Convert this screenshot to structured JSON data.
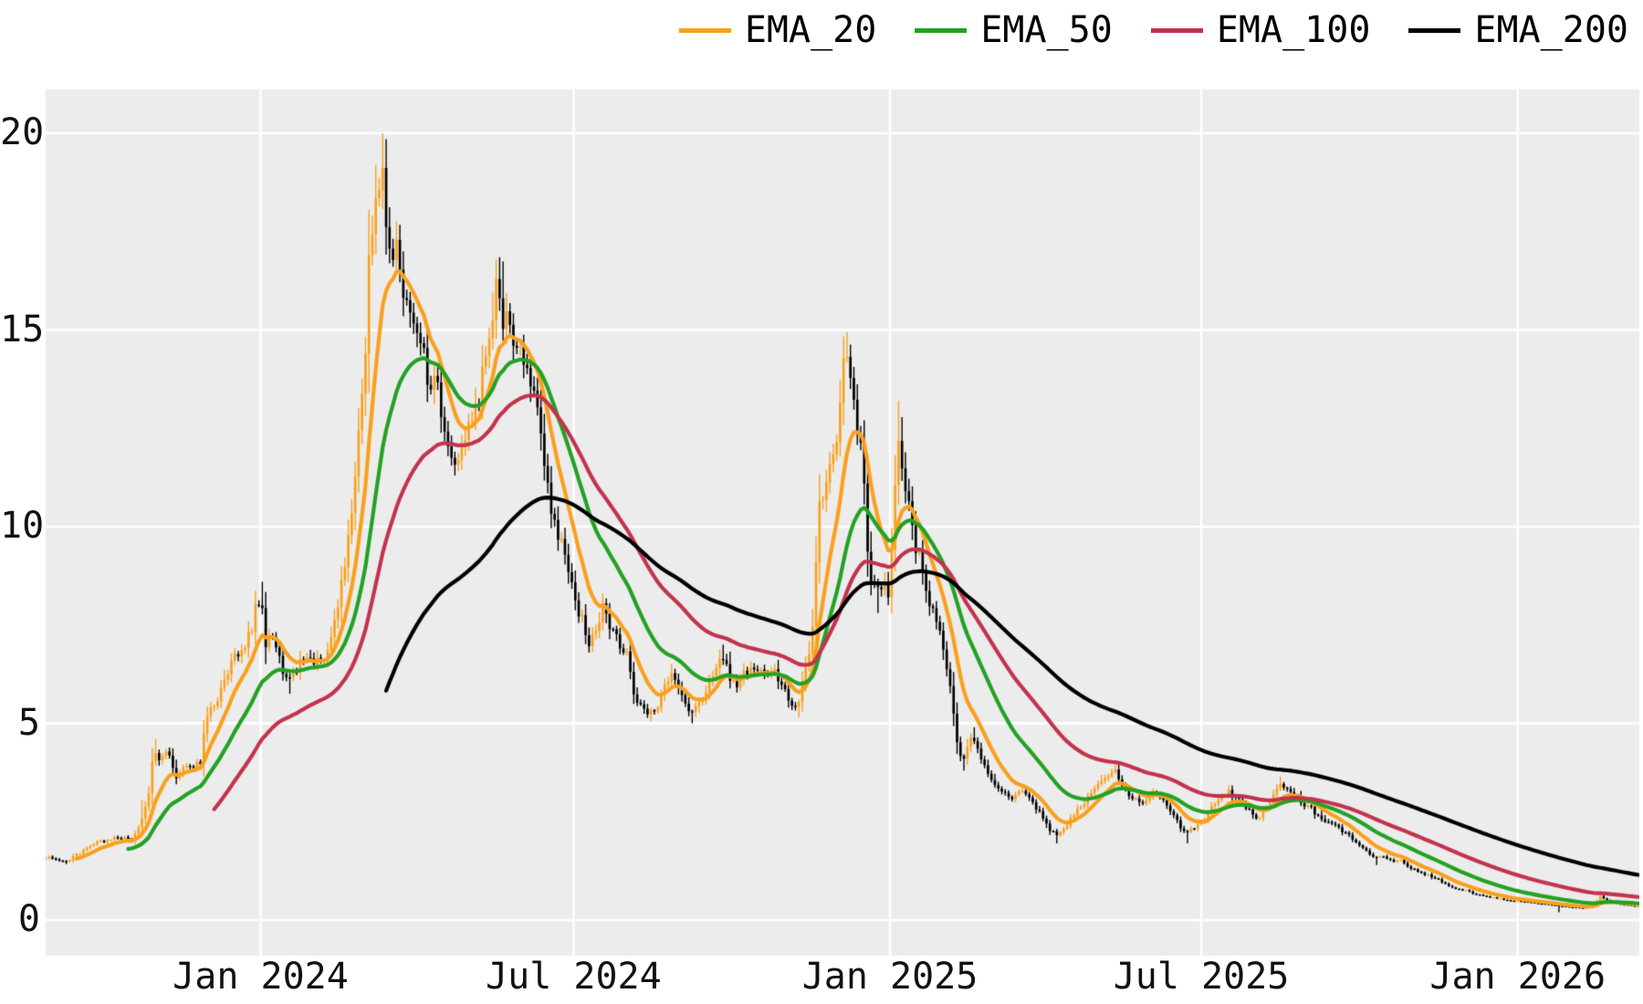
{
  "legend": {
    "items": [
      {
        "label": "EMA_20",
        "color": "#f9a01d"
      },
      {
        "label": "EMA_50",
        "color": "#23a123"
      },
      {
        "label": "EMA_100",
        "color": "#c2334d"
      },
      {
        "label": "EMA_200",
        "color": "#000000"
      }
    ]
  },
  "chart_data": {
    "type": "candlestick",
    "title": "",
    "legend_position": "top-right",
    "grid": true,
    "colors": {
      "candle_up": "#f9a01d",
      "candle_down": "#000000",
      "ema20": "#f9a01d",
      "ema50": "#23a123",
      "ema100": "#c2334d",
      "ema200": "#000000",
      "plot_bg": "#ececec",
      "grid": "#ffffff",
      "text": "#111111",
      "figure_bg": "#ffffff"
    },
    "overlays": [
      {
        "name": "EMA_20",
        "span_days": 20,
        "color": "#f9a01d"
      },
      {
        "name": "EMA_50",
        "span_days": 50,
        "color": "#23a123"
      },
      {
        "name": "EMA_100",
        "span_days": 100,
        "color": "#c2334d"
      },
      {
        "name": "EMA_200",
        "span_days": 200,
        "color": "#000000"
      }
    ],
    "x_axis": {
      "start": "2023-08-29",
      "end": "2026-03-12",
      "ticks": [
        {
          "date": "2024-01-01",
          "label": "Jan 2024"
        },
        {
          "date": "2024-07-01",
          "label": "Jul 2024"
        },
        {
          "date": "2025-01-01",
          "label": "Jan 2025"
        },
        {
          "date": "2025-07-01",
          "label": "Jul 2025"
        },
        {
          "date": "2026-01-01",
          "label": "Jan 2026"
        }
      ]
    },
    "y_axis": {
      "ticks": [
        0,
        5,
        10,
        15,
        20
      ],
      "tick_labels": [
        "0",
        "5",
        "10",
        "15",
        "20"
      ],
      "min": -0.9,
      "max": 21.1
    },
    "candle_step_days": 2,
    "close_anchors": [
      [
        "2023-08-29",
        1.6
      ],
      [
        "2023-09-04",
        1.55
      ],
      [
        "2023-09-09",
        1.45
      ],
      [
        "2023-09-19",
        1.75
      ],
      [
        "2023-09-30",
        2.0
      ],
      [
        "2023-10-11",
        2.1
      ],
      [
        "2023-10-19",
        2.05
      ],
      [
        "2023-10-24",
        2.6
      ],
      [
        "2023-10-28",
        3.3
      ],
      [
        "2023-10-31",
        4.35
      ],
      [
        "2023-11-03",
        4.1
      ],
      [
        "2023-11-08",
        4.45
      ],
      [
        "2023-11-12",
        3.55
      ],
      [
        "2023-11-17",
        3.9
      ],
      [
        "2023-11-22",
        3.85
      ],
      [
        "2023-11-27",
        4.0
      ],
      [
        "2023-12-01",
        5.3
      ],
      [
        "2023-12-07",
        5.65
      ],
      [
        "2023-12-13",
        6.3
      ],
      [
        "2023-12-20",
        6.9
      ],
      [
        "2023-12-25",
        7.2
      ],
      [
        "2024-01-01",
        8.3
      ],
      [
        "2024-01-04",
        7.0
      ],
      [
        "2024-01-08",
        7.3
      ],
      [
        "2024-01-12",
        6.6
      ],
      [
        "2024-01-17",
        6.05
      ],
      [
        "2024-01-23",
        6.5
      ],
      [
        "2024-01-30",
        6.65
      ],
      [
        "2024-02-05",
        6.55
      ],
      [
        "2024-02-10",
        7.0
      ],
      [
        "2024-02-14",
        7.7
      ],
      [
        "2024-02-18",
        8.8
      ],
      [
        "2024-02-21",
        9.7
      ],
      [
        "2024-02-25",
        11.2
      ],
      [
        "2024-03-01",
        13.8
      ],
      [
        "2024-03-04",
        16.5
      ],
      [
        "2024-03-07",
        18.4
      ],
      [
        "2024-03-09",
        17.6
      ],
      [
        "2024-03-11",
        19.3
      ],
      [
        "2024-03-14",
        18.0
      ],
      [
        "2024-03-17",
        16.9
      ],
      [
        "2024-03-20",
        17.3
      ],
      [
        "2024-03-25",
        15.9
      ],
      [
        "2024-03-28",
        15.7
      ],
      [
        "2024-04-01",
        15.3
      ],
      [
        "2024-04-05",
        14.4
      ],
      [
        "2024-04-08",
        13.7
      ],
      [
        "2024-04-12",
        13.9
      ],
      [
        "2024-04-15",
        12.6
      ],
      [
        "2024-04-19",
        11.9
      ],
      [
        "2024-04-22",
        11.6
      ],
      [
        "2024-04-27",
        12.1
      ],
      [
        "2024-05-02",
        12.6
      ],
      [
        "2024-05-07",
        13.4
      ],
      [
        "2024-05-12",
        14.8
      ],
      [
        "2024-05-18",
        16.3
      ],
      [
        "2024-05-21",
        15.4
      ],
      [
        "2024-05-26",
        15.0
      ],
      [
        "2024-05-31",
        14.3
      ],
      [
        "2024-06-05",
        13.8
      ],
      [
        "2024-06-11",
        12.7
      ],
      [
        "2024-06-15",
        11.5
      ],
      [
        "2024-06-19",
        10.2
      ],
      [
        "2024-06-23",
        9.6
      ],
      [
        "2024-06-28",
        8.9
      ],
      [
        "2024-07-02",
        8.2
      ],
      [
        "2024-07-06",
        7.6
      ],
      [
        "2024-07-10",
        7.1
      ],
      [
        "2024-07-14",
        7.5
      ],
      [
        "2024-07-18",
        8.0
      ],
      [
        "2024-07-22",
        7.5
      ],
      [
        "2024-07-27",
        7.0
      ],
      [
        "2024-08-02",
        6.6
      ],
      [
        "2024-08-05",
        5.8
      ],
      [
        "2024-08-10",
        5.4
      ],
      [
        "2024-08-14",
        5.3
      ],
      [
        "2024-08-20",
        5.5
      ],
      [
        "2024-08-24",
        6.1
      ],
      [
        "2024-08-27",
        6.3
      ],
      [
        "2024-08-30",
        5.9
      ],
      [
        "2024-09-04",
        5.6
      ],
      [
        "2024-09-07",
        5.25
      ],
      [
        "2024-09-12",
        5.45
      ],
      [
        "2024-09-17",
        5.9
      ],
      [
        "2024-09-21",
        6.3
      ],
      [
        "2024-09-25",
        6.85
      ],
      [
        "2024-09-29",
        6.3
      ],
      [
        "2024-10-03",
        6.0
      ],
      [
        "2024-10-08",
        6.2
      ],
      [
        "2024-10-13",
        6.35
      ],
      [
        "2024-10-19",
        6.2
      ],
      [
        "2024-10-24",
        6.35
      ],
      [
        "2024-10-28",
        6.1
      ],
      [
        "2024-11-01",
        5.8
      ],
      [
        "2024-11-05",
        5.5
      ],
      [
        "2024-11-08",
        5.35
      ],
      [
        "2024-11-11",
        6.0
      ],
      [
        "2024-11-16",
        6.9
      ],
      [
        "2024-11-21",
        10.6
      ],
      [
        "2024-11-25",
        10.9
      ],
      [
        "2024-11-28",
        11.7
      ],
      [
        "2024-12-02",
        12.6
      ],
      [
        "2024-12-06",
        14.4
      ],
      [
        "2024-12-09",
        13.6
      ],
      [
        "2024-12-12",
        12.8
      ],
      [
        "2024-12-16",
        12.0
      ],
      [
        "2024-12-18",
        10.3
      ],
      [
        "2024-12-20",
        8.8
      ],
      [
        "2024-12-24",
        8.2
      ],
      [
        "2024-12-28",
        8.6
      ],
      [
        "2025-01-01",
        8.3
      ],
      [
        "2025-01-05",
        12.3
      ],
      [
        "2025-01-08",
        11.4
      ],
      [
        "2025-01-12",
        10.6
      ],
      [
        "2025-01-15",
        9.7
      ],
      [
        "2025-01-20",
        9.0
      ],
      [
        "2025-01-23",
        8.3
      ],
      [
        "2025-01-28",
        7.6
      ],
      [
        "2025-01-31",
        7.0
      ],
      [
        "2025-02-04",
        6.3
      ],
      [
        "2025-02-07",
        5.3
      ],
      [
        "2025-02-10",
        4.2
      ],
      [
        "2025-02-12",
        4.0
      ],
      [
        "2025-02-15",
        4.4
      ],
      [
        "2025-02-18",
        4.7
      ],
      [
        "2025-02-21",
        4.3
      ],
      [
        "2025-02-26",
        3.8
      ],
      [
        "2025-03-03",
        3.5
      ],
      [
        "2025-03-08",
        3.2
      ],
      [
        "2025-03-14",
        3.1
      ],
      [
        "2025-03-19",
        3.25
      ],
      [
        "2025-03-24",
        3.05
      ],
      [
        "2025-03-30",
        2.7
      ],
      [
        "2025-04-04",
        2.3
      ],
      [
        "2025-04-08",
        2.15
      ],
      [
        "2025-04-12",
        2.35
      ],
      [
        "2025-04-17",
        2.6
      ],
      [
        "2025-04-22",
        2.9
      ],
      [
        "2025-04-28",
        3.2
      ],
      [
        "2025-05-03",
        3.5
      ],
      [
        "2025-05-08",
        3.7
      ],
      [
        "2025-05-12",
        3.8
      ],
      [
        "2025-05-16",
        3.4
      ],
      [
        "2025-05-22",
        3.1
      ],
      [
        "2025-05-27",
        2.95
      ],
      [
        "2025-06-02",
        3.25
      ],
      [
        "2025-06-08",
        3.1
      ],
      [
        "2025-06-13",
        2.8
      ],
      [
        "2025-06-18",
        2.4
      ],
      [
        "2025-06-22",
        2.15
      ],
      [
        "2025-06-28",
        2.4
      ],
      [
        "2025-07-03",
        2.6
      ],
      [
        "2025-07-08",
        2.9
      ],
      [
        "2025-07-14",
        3.1
      ],
      [
        "2025-07-17",
        3.25
      ],
      [
        "2025-07-23",
        3.05
      ],
      [
        "2025-07-28",
        2.85
      ],
      [
        "2025-08-02",
        2.6
      ],
      [
        "2025-08-07",
        2.75
      ],
      [
        "2025-08-11",
        3.1
      ],
      [
        "2025-08-15",
        3.45
      ],
      [
        "2025-08-20",
        3.3
      ],
      [
        "2025-08-26",
        3.1
      ],
      [
        "2025-09-02",
        2.85
      ],
      [
        "2025-09-08",
        2.6
      ],
      [
        "2025-09-14",
        2.45
      ],
      [
        "2025-09-21",
        2.25
      ],
      [
        "2025-09-27",
        2.05
      ],
      [
        "2025-10-03",
        1.8
      ],
      [
        "2025-10-10",
        1.55
      ],
      [
        "2025-10-15",
        1.65
      ],
      [
        "2025-10-20",
        1.5
      ],
      [
        "2025-10-25",
        1.55
      ],
      [
        "2025-10-30",
        1.35
      ],
      [
        "2025-11-06",
        1.2
      ],
      [
        "2025-11-13",
        1.1
      ],
      [
        "2025-11-19",
        0.95
      ],
      [
        "2025-11-26",
        0.8
      ],
      [
        "2025-12-02",
        0.75
      ],
      [
        "2025-12-08",
        0.65
      ],
      [
        "2025-12-15",
        0.6
      ],
      [
        "2025-12-21",
        0.55
      ],
      [
        "2025-12-27",
        0.5
      ],
      [
        "2026-01-03",
        0.47
      ],
      [
        "2026-01-10",
        0.44
      ],
      [
        "2026-01-18",
        0.4
      ],
      [
        "2026-01-25",
        0.36
      ],
      [
        "2026-02-01",
        0.33
      ],
      [
        "2026-02-09",
        0.3
      ],
      [
        "2026-02-15",
        0.42
      ],
      [
        "2026-02-18",
        0.6
      ],
      [
        "2026-02-22",
        0.5
      ],
      [
        "2026-02-28",
        0.42
      ],
      [
        "2026-03-06",
        0.38
      ],
      [
        "2026-03-12",
        0.35
      ]
    ],
    "spike_highs": [
      [
        "2023-10-24",
        3.05
      ],
      [
        "2023-10-31",
        4.6
      ],
      [
        "2024-01-01",
        8.6
      ],
      [
        "2024-03-07",
        19.2
      ],
      [
        "2024-03-11",
        20.0
      ],
      [
        "2024-03-14",
        19.7
      ],
      [
        "2024-05-18",
        16.85
      ],
      [
        "2024-07-18",
        8.3
      ],
      [
        "2024-08-27",
        6.5
      ],
      [
        "2024-09-25",
        7.0
      ],
      [
        "2024-11-21",
        10.9
      ],
      [
        "2024-12-06",
        14.95
      ],
      [
        "2025-01-05",
        13.2
      ],
      [
        "2025-02-18",
        4.9
      ],
      [
        "2025-05-12",
        3.95
      ],
      [
        "2025-07-17",
        3.42
      ],
      [
        "2025-08-15",
        3.65
      ],
      [
        "2026-02-18",
        0.72
      ]
    ],
    "spike_lows": [
      [
        "2023-09-09",
        1.42
      ],
      [
        "2024-01-17",
        5.75
      ],
      [
        "2024-04-22",
        11.3
      ],
      [
        "2024-08-14",
        5.05
      ],
      [
        "2024-09-07",
        5.0
      ],
      [
        "2024-11-08",
        5.15
      ],
      [
        "2024-12-24",
        7.8
      ],
      [
        "2025-02-12",
        3.8
      ],
      [
        "2025-04-08",
        1.95
      ],
      [
        "2025-06-22",
        1.95
      ],
      [
        "2025-10-10",
        1.4
      ],
      [
        "2026-01-25",
        0.2
      ]
    ]
  }
}
